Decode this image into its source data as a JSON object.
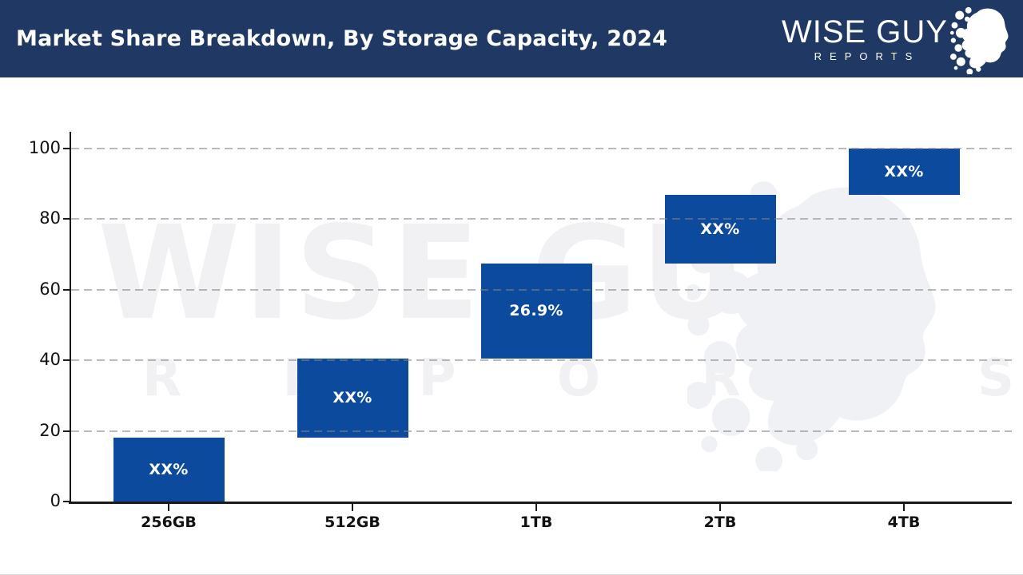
{
  "header": {
    "title": "Market Share Breakdown, By Storage Capacity, 2024",
    "bg_color": "#203864",
    "logo": {
      "line1": "WISE GUY",
      "line2": "REPORTS"
    }
  },
  "watermark": {
    "line1": "WISE GUY",
    "line2": "R E P O R T S"
  },
  "chart_data": {
    "type": "bar",
    "subtype": "floating-waterfall",
    "title": "Market Share Breakdown, By Storage Capacity, 2024",
    "xlabel": "",
    "ylabel": "",
    "categories": [
      "256GB",
      "512GB",
      "1TB",
      "2TB",
      "4TB"
    ],
    "segments": [
      {
        "category": "256GB",
        "from": 0,
        "to": 18.2,
        "label": "XX%"
      },
      {
        "category": "512GB",
        "from": 18.2,
        "to": 40.6,
        "label": "XX%"
      },
      {
        "category": "1TB",
        "from": 40.6,
        "to": 67.5,
        "label": "26.9%"
      },
      {
        "category": "2TB",
        "from": 67.5,
        "to": 86.9,
        "label": "XX%"
      },
      {
        "category": "4TB",
        "from": 86.9,
        "to": 100.0,
        "label": "XX%"
      }
    ],
    "yticks": [
      0,
      20,
      40,
      60,
      80,
      100
    ],
    "ylim": [
      0,
      105
    ],
    "grid": "dashed horizontal, drawn over bars",
    "legend": "none",
    "bar_color": "#0c4a9e",
    "grid_color": "rgba(130,130,130,0.55)",
    "axis_color": "#1a1a1a"
  }
}
